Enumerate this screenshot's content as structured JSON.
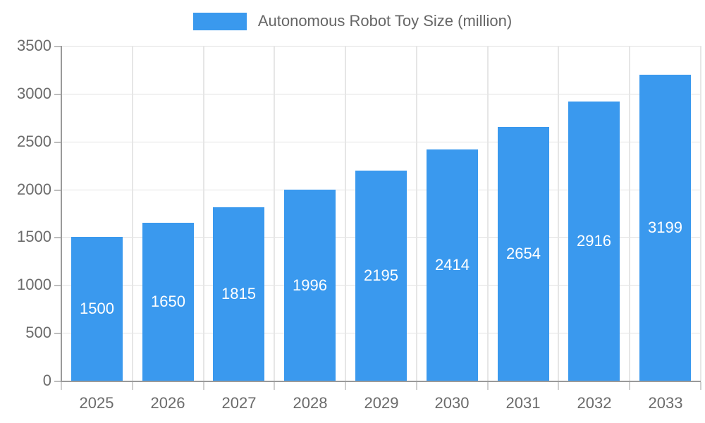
{
  "chart_data": {
    "type": "bar",
    "title": "Autonomous Robot Toy Size (million)",
    "categories": [
      "2025",
      "2026",
      "2027",
      "2028",
      "2029",
      "2030",
      "2031",
      "2032",
      "2033"
    ],
    "series": [
      {
        "name": "Autonomous Robot Toy Size (million)",
        "values": [
          1500,
          1650,
          1815,
          1996,
          2195,
          2414,
          2654,
          2916,
          3199
        ]
      }
    ],
    "data_labels": [
      1500,
      1650,
      1815,
      1996,
      2195,
      2414,
      2654,
      2916,
      3199
    ],
    "xlabel": "",
    "ylabel": "",
    "ylim": [
      0,
      3500
    ],
    "y_ticks": [
      0,
      500,
      1000,
      1500,
      2000,
      2500,
      3000,
      3500
    ],
    "grid": true,
    "legend_position": "top",
    "colors": {
      "bar": "#3A99EE",
      "bar_label_text": "#ffffff",
      "axis_text": "#6b6b6b",
      "legend_text": "#666666",
      "gridline": "#e2e2e2",
      "axis_line": "#9a9a9a",
      "background": "#ffffff"
    }
  }
}
